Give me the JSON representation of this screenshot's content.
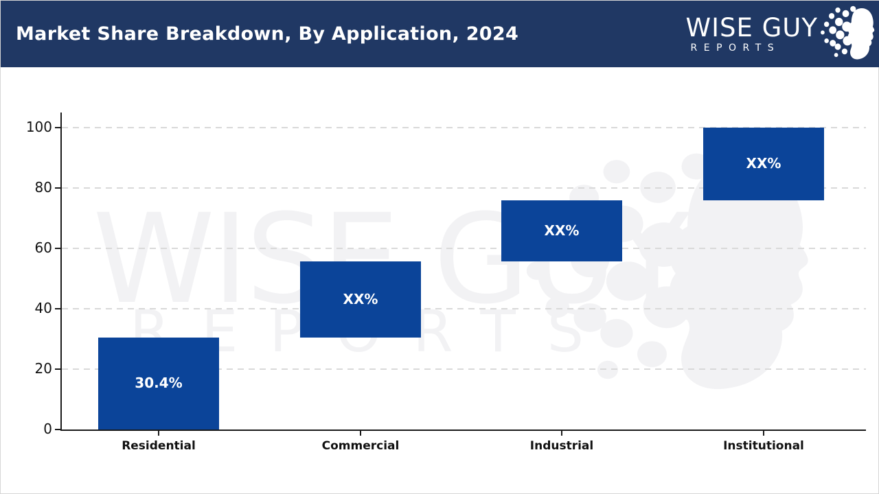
{
  "header": {
    "title": "Market Share Breakdown, By Application, 2024",
    "logo": {
      "wordmark": "WISE GUY",
      "subtitle": "REPORTS"
    }
  },
  "watermark": {
    "wordmark": "WISE GUY",
    "subtitle": "REPORTS"
  },
  "colors": {
    "header_bg": "#203864",
    "bar_blue": "#0b4499",
    "grid_gray": "#d9d9d9",
    "watermark_gray": "#f2f2f4",
    "axis_black": "#1a1a1a"
  },
  "chart_data": {
    "type": "bar",
    "subtype": "floating-waterfall",
    "title": "Market Share Breakdown, By Application, 2024",
    "categories": [
      "Residential",
      "Commercial",
      "Industrial",
      "Institutional"
    ],
    "segments": [
      {
        "category": "Residential",
        "start": 0,
        "end": 30.4,
        "label": "30.4%"
      },
      {
        "category": "Commercial",
        "start": 30.4,
        "end": 55.6,
        "label": "XX%"
      },
      {
        "category": "Industrial",
        "start": 55.6,
        "end": 75.8,
        "label": "XX%"
      },
      {
        "category": "Institutional",
        "start": 75.8,
        "end": 100,
        "label": "XX%"
      }
    ],
    "xlabel": "",
    "ylabel": "",
    "yticks": [
      0,
      20,
      40,
      60,
      80,
      100
    ],
    "ylim": [
      0,
      105
    ],
    "grid": "horizontal-dashed",
    "legend": "none",
    "bar_color": "#0b4499",
    "value_label_color": "#ffffff"
  }
}
